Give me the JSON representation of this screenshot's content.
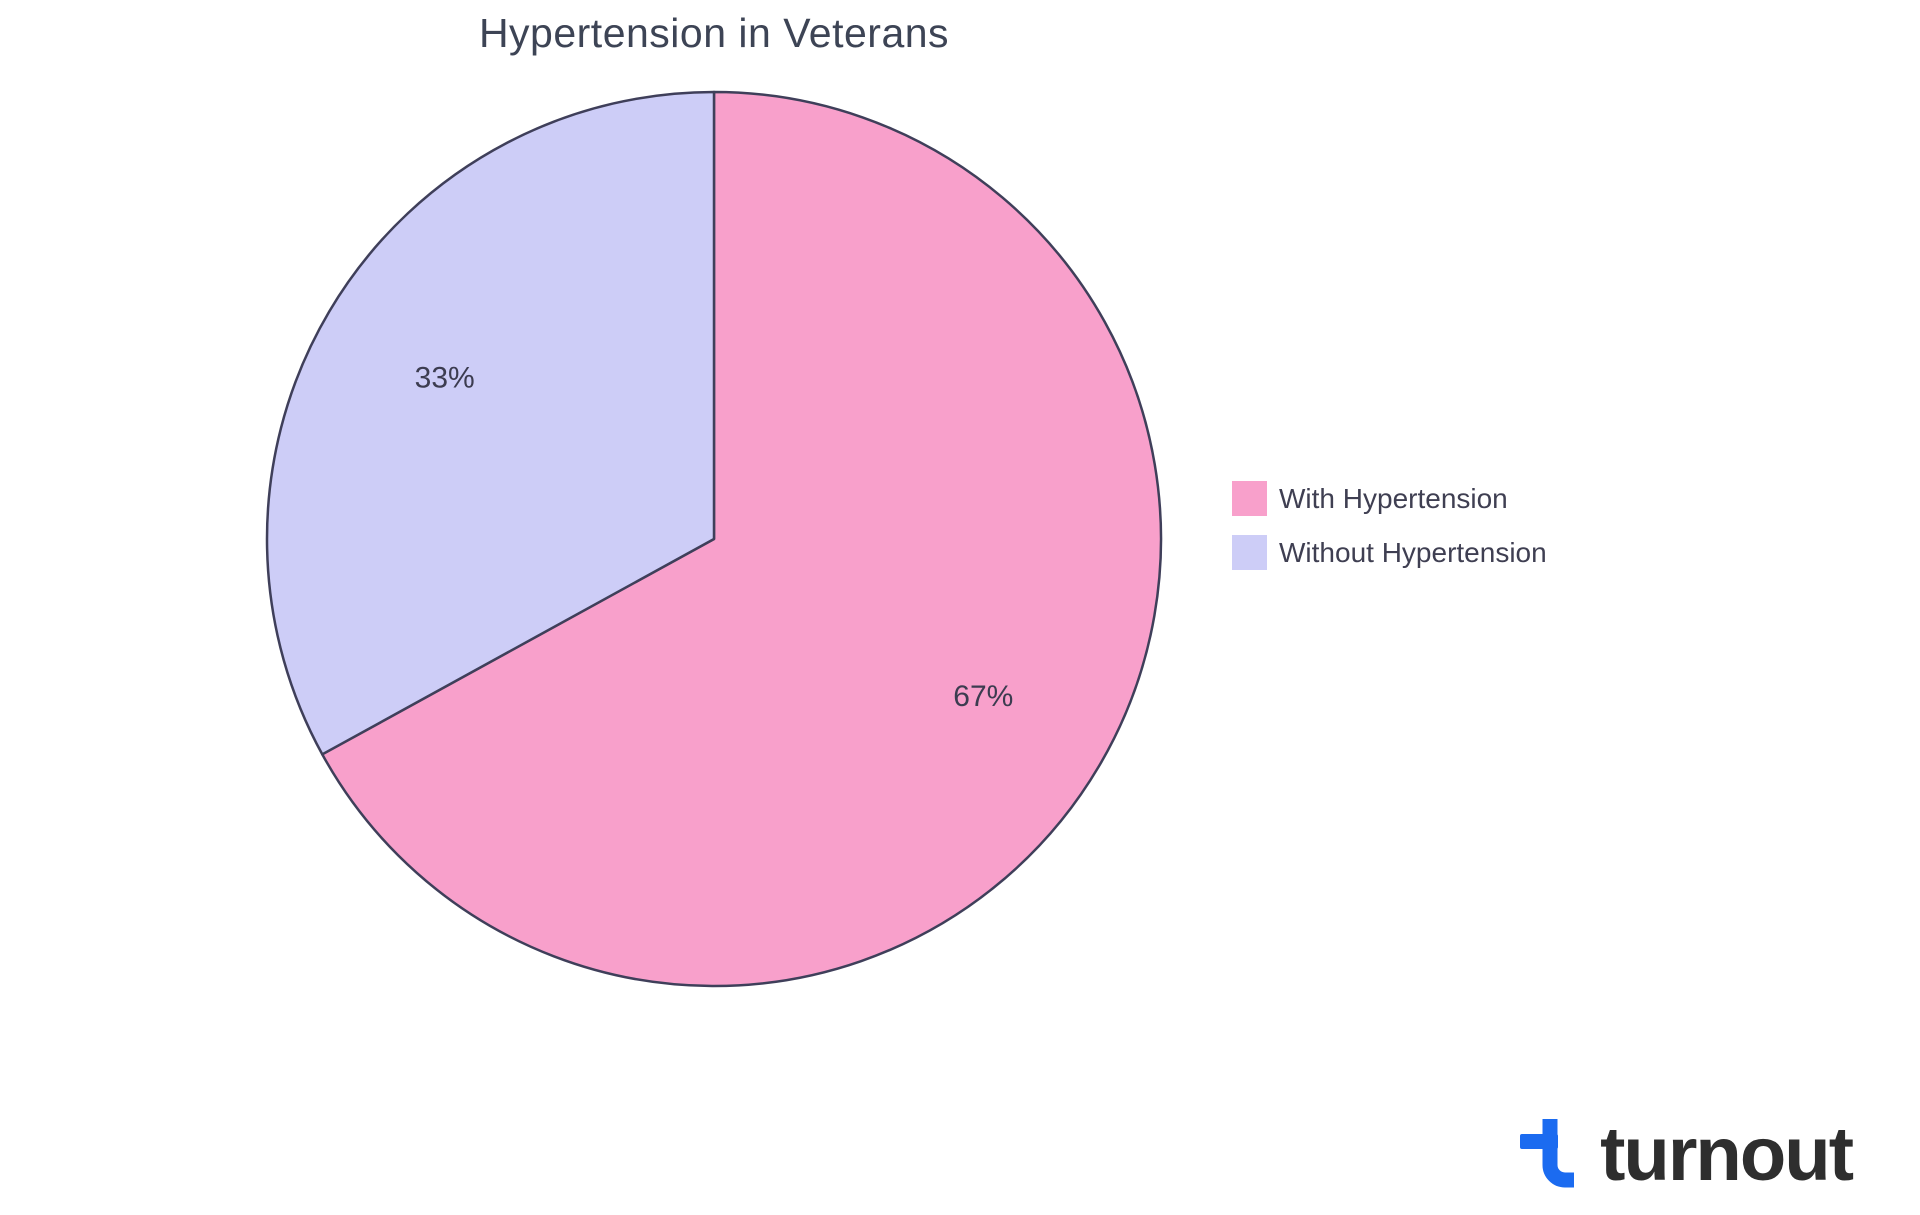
{
  "chart_data": {
    "type": "pie",
    "title": "Hypertension in Veterans",
    "labels": [
      "With Hypertension",
      "Without Hypertension"
    ],
    "values": [
      67,
      33
    ],
    "value_labels": [
      "67%",
      "33%"
    ],
    "colors": [
      "#F8A0CB",
      "#CDCDF7"
    ],
    "stroke_color": "#3f3f5a",
    "start_angle_deg": -90,
    "direction": "clockwise",
    "legend_position": "right",
    "label_radius_ratio": 0.7
  },
  "legend": {
    "items": [
      {
        "label": "With Hypertension",
        "color": "#F8A0CB"
      },
      {
        "label": "Without Hypertension",
        "color": "#CDCDF7"
      }
    ]
  },
  "logo": {
    "text": "turnout",
    "icon": "turnout-t-icon",
    "icon_color": "#1B6BF0",
    "text_color": "#2e2e2e"
  }
}
